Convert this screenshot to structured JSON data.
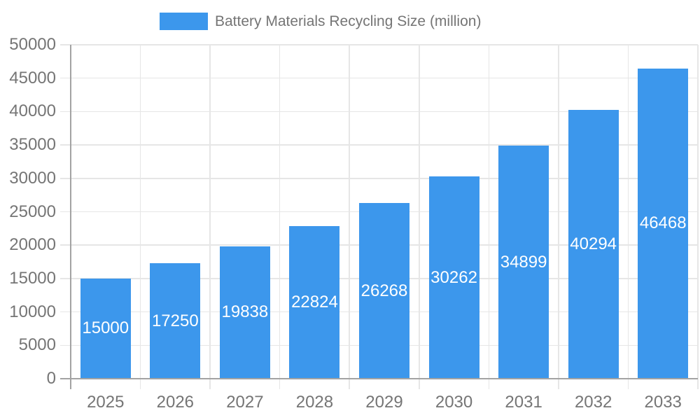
{
  "legend": {
    "label": "Battery Materials Recycling Size (million)"
  },
  "chart_data": {
    "type": "bar",
    "title": "Battery Materials Recycling Size (million)",
    "categories": [
      "2025",
      "2026",
      "2027",
      "2028",
      "2029",
      "2030",
      "2031",
      "2032",
      "2033"
    ],
    "series": [
      {
        "name": "Battery Materials Recycling Size (million)",
        "values": [
          15000,
          17250,
          19838,
          22824,
          26268,
          30262,
          34899,
          40294,
          46468
        ]
      }
    ],
    "xlabel": "",
    "ylabel": "",
    "ylim": [
      0,
      50000
    ],
    "ytick_step": 5000,
    "yticks": [
      0,
      5000,
      10000,
      15000,
      20000,
      25000,
      30000,
      35000,
      40000,
      45000,
      50000
    ],
    "grid": true,
    "legend_position": "top-center",
    "data_labels_position": "inside-middle",
    "colors": {
      "bar": "#3c97ec",
      "bar_label_text": "#ffffff",
      "grid": "#e6e6e6",
      "axis": "#a3a3a3",
      "axis_text": "#757575",
      "background": "#ffffff"
    }
  }
}
